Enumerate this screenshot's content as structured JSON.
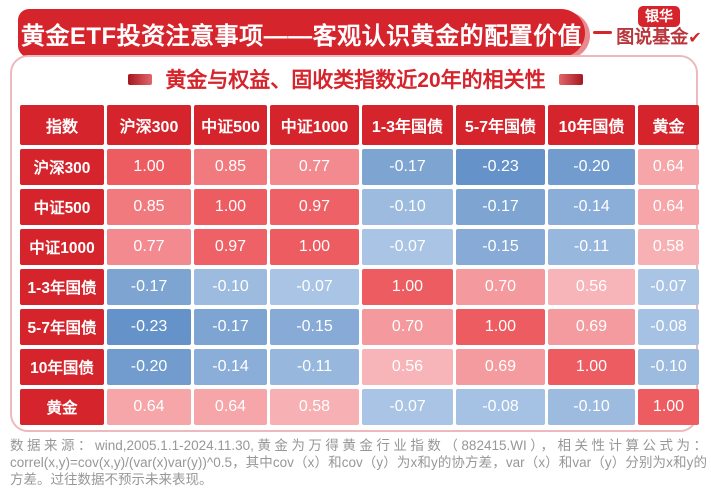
{
  "header": {
    "title": "黄金ETF投资注意事项——客观认识黄金的配置价值",
    "logo": {
      "badge": "银华",
      "name": "图说基金",
      "check_icon": "✔"
    }
  },
  "subtitle": "黄金与权益、固收类指数近20年的相关性",
  "chart_data": {
    "type": "heatmap",
    "title": "黄金与权益、固收类指数近20年的相关性",
    "corner_label": "指数",
    "columns": [
      "沪深300",
      "中证500",
      "中证1000",
      "1-3年国债",
      "5-7年国债",
      "10年国债",
      "黄金"
    ],
    "rows": [
      {
        "label": "沪深300",
        "values": [
          1.0,
          0.85,
          0.77,
          -0.17,
          -0.23,
          -0.2,
          0.64
        ]
      },
      {
        "label": "中证500",
        "values": [
          0.85,
          1.0,
          0.97,
          -0.1,
          -0.17,
          -0.14,
          0.64
        ]
      },
      {
        "label": "中证1000",
        "values": [
          0.77,
          0.97,
          1.0,
          -0.07,
          -0.15,
          -0.11,
          0.58
        ]
      },
      {
        "label": "1-3年国债",
        "values": [
          -0.17,
          -0.1,
          -0.07,
          1.0,
          0.7,
          0.56,
          -0.07
        ]
      },
      {
        "label": "5-7年国债",
        "values": [
          -0.23,
          -0.17,
          -0.15,
          0.7,
          1.0,
          0.69,
          -0.08
        ]
      },
      {
        "label": "10年国债",
        "values": [
          -0.2,
          -0.14,
          -0.11,
          0.56,
          0.69,
          1.0,
          -0.1
        ]
      },
      {
        "label": "黄金",
        "values": [
          0.64,
          0.64,
          0.58,
          -0.07,
          -0.08,
          -0.1,
          1.0
        ]
      }
    ],
    "value_range": [
      -1,
      1
    ],
    "value_format": "0.00",
    "layout": {
      "grid": "off",
      "legend": "none",
      "positive_color_meaning": "正相关(红)",
      "negative_color_meaning": "负相关(蓝)"
    }
  },
  "colors": {
    "brand_red": "#d5242b",
    "banner_glow": "#e98a8f",
    "card_border": "#eeb9bd",
    "logo_name_red": "#b8373d",
    "footer_gray": "#979797",
    "scale": {
      "positive": {
        "v0": 0.5,
        "c0": [
          249,
          193,
          197
        ],
        "v1": 1.0,
        "c1": [
          237,
          92,
          97
        ]
      },
      "negative": {
        "v0": -0.05,
        "c0": [
          178,
          202,
          232
        ],
        "v1": -0.25,
        "c1": [
          92,
          140,
          196
        ]
      }
    }
  },
  "footer": {
    "text": "数据来源：wind,2005.1.1-2024.11.30,黄金为万得黄金行业指数（882415.WI），相关性计算公式为：correl(x,y)=cov(x,y)/(var(x)var(y))^0.5，其中cov（x）和cov（y）为x和y的协方差，var（x）和var（y）分别为x和y的方差。过往数据不预示未来表现。"
  }
}
